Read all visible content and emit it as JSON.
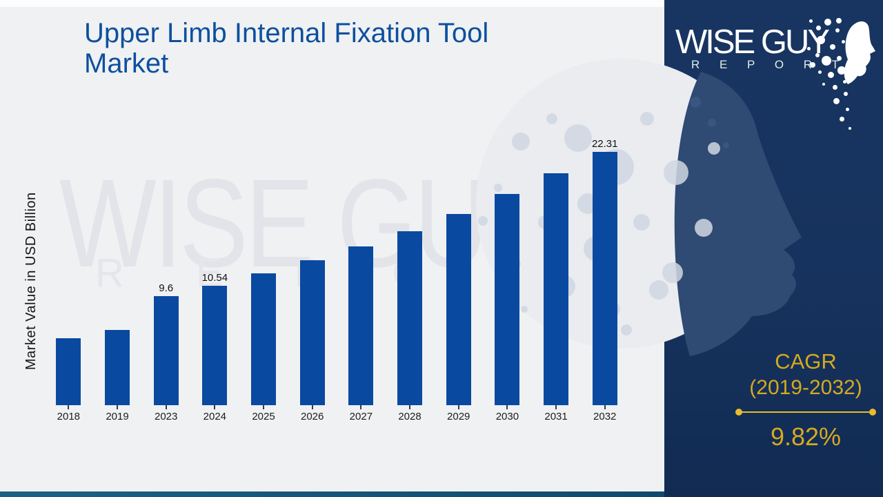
{
  "title": "Upper Limb Internal Fixation Tool Market",
  "logo": {
    "line1": "WISE GUY",
    "line2": "R E P O R T S"
  },
  "watermark": {
    "line1": "WISE GUY",
    "line2": "R E P O R T S"
  },
  "cagr": {
    "title": "CAGR",
    "range": "(2019-2032)",
    "value": "9.82%"
  },
  "chart_data": {
    "type": "bar",
    "title": "Upper Limb Internal Fixation Tool Market",
    "xlabel": "",
    "ylabel": "Market Value in USD Billion",
    "categories": [
      "2018",
      "2019",
      "2023",
      "2024",
      "2025",
      "2026",
      "2027",
      "2028",
      "2029",
      "2030",
      "2031",
      "2032"
    ],
    "values": [
      5.9,
      6.6,
      9.6,
      10.54,
      11.6,
      12.75,
      14.0,
      15.35,
      16.85,
      18.6,
      20.4,
      22.31
    ],
    "data_labels": {
      "2023": "9.6",
      "2024": "10.54",
      "2032": "22.31"
    },
    "bar_color": "#0a49a0",
    "ylim": [
      0,
      24
    ],
    "grid": false,
    "legend": false
  },
  "colors": {
    "title_blue": "#0d4f9e",
    "bar_blue": "#0a49a0",
    "panel_navy": "#17335f",
    "gold": "#d5a921",
    "background": "#f0f1f3",
    "bottom_accent_teal": "#16587a"
  }
}
